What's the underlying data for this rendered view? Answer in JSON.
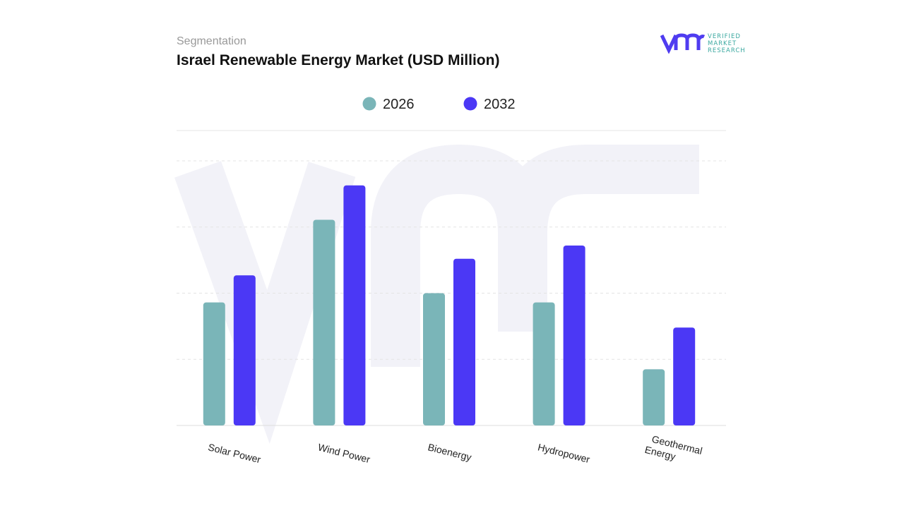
{
  "header": {
    "subtitle": "Segmentation",
    "title": "Israel Renewable Energy Market (USD Million)"
  },
  "logo": {
    "text_lines": [
      "VERIFIED",
      "MARKET",
      "RESEARCH"
    ],
    "color_primary": "#4f3cf0",
    "color_secondary": "#3aa8a0"
  },
  "chart_data": {
    "type": "bar",
    "title": "Israel Renewable Energy Market (USD Million)",
    "categories": [
      "Solar Power",
      "Wind Power",
      "Bioenergy",
      "Hydropower",
      "Geothermal Energy"
    ],
    "series": [
      {
        "name": "2026",
        "color": "#7ab5b8",
        "values": [
          1.86,
          3.11,
          2.0,
          1.86,
          0.85
        ]
      },
      {
        "name": "2032",
        "color": "#4b38f5",
        "values": [
          2.27,
          3.63,
          2.52,
          2.72,
          1.48
        ]
      }
    ],
    "ylim": [
      0,
      4
    ],
    "y_tick_labels_shown": false,
    "grid": true,
    "legend": "top-center"
  }
}
